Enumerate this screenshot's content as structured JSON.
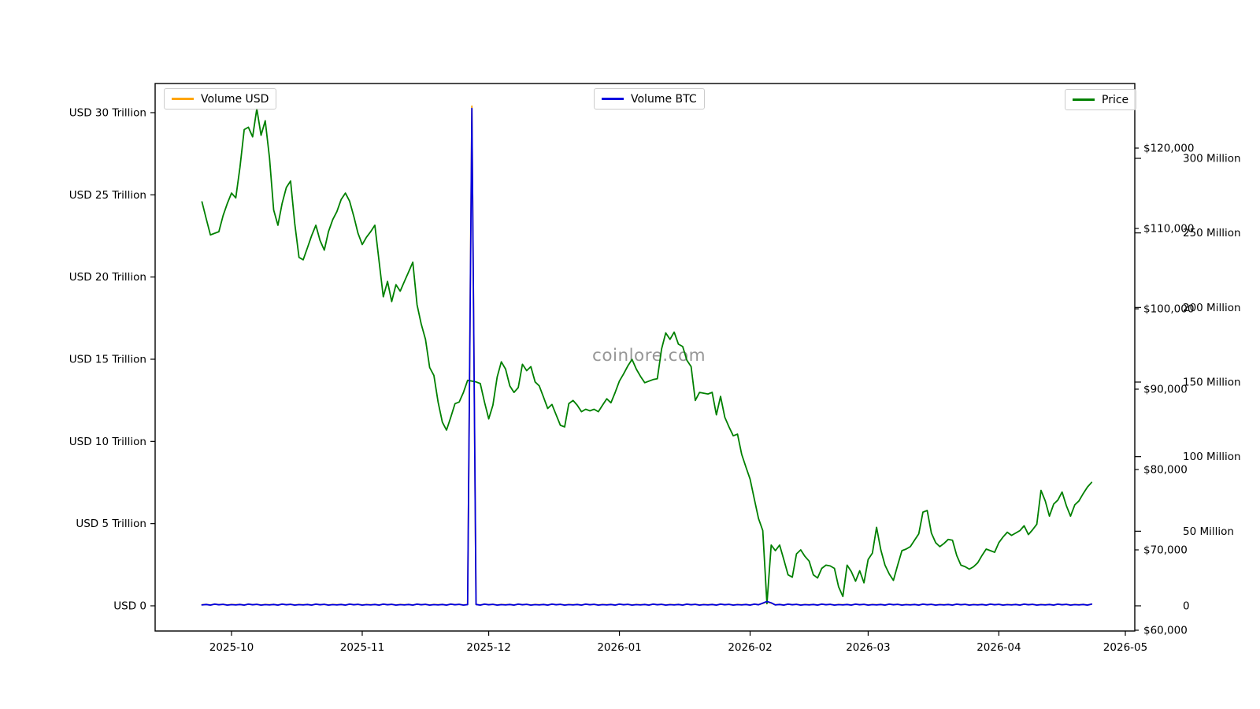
{
  "page": {
    "background": "#ffffff"
  },
  "watermark": {
    "text": "coinlore.com",
    "color": "#979797"
  },
  "legend": {
    "items": [
      {
        "label": "Volume USD",
        "color": "#FFA500"
      },
      {
        "label": "Volume BTC",
        "color": "#0000E0"
      },
      {
        "label": "Price",
        "color": "#008000"
      }
    ]
  },
  "chart_data": {
    "type": "line",
    "title": "",
    "grid": false,
    "x_axis": {
      "ticks": [
        {
          "label": "2025-10",
          "date": "2025-10-01"
        },
        {
          "label": "2025-11",
          "date": "2025-11-01"
        },
        {
          "label": "2025-12",
          "date": "2025-12-01"
        },
        {
          "label": "2026-01",
          "date": "2026-01-01"
        },
        {
          "label": "2026-02",
          "date": "2026-02-01"
        },
        {
          "label": "2026-03",
          "date": "2026-03-01"
        },
        {
          "label": "2026-04",
          "date": "2026-04-01"
        },
        {
          "label": "2026-05",
          "date": "2026-05-01"
        }
      ]
    },
    "left_axis": {
      "unit": "USD Trillion",
      "ticks": [
        {
          "label": "USD 30 Trillion",
          "value": 30
        },
        {
          "label": "USD 25 Trillion",
          "value": 25
        },
        {
          "label": "USD 20 Trillion",
          "value": 20
        },
        {
          "label": "USD 15 Trillion",
          "value": 15
        },
        {
          "label": "USD 10 Trillion",
          "value": 10
        },
        {
          "label": "USD 5 Trillion",
          "value": 5
        },
        {
          "label": "USD 0",
          "value": 0
        }
      ]
    },
    "right_price_axis": {
      "unit": "USD",
      "ticks": [
        {
          "label": "$120,000",
          "value": 120000
        },
        {
          "label": "$110,000",
          "value": 110000
        },
        {
          "label": "$100,000",
          "value": 100000
        },
        {
          "label": "$90,000",
          "value": 90000
        },
        {
          "label": "$80,000",
          "value": 80000
        },
        {
          "label": "$70,000",
          "value": 70000
        },
        {
          "label": "$60,000",
          "value": 60000
        }
      ]
    },
    "right_volume_axis": {
      "unit": "Million BTC",
      "ticks": [
        {
          "label": "300 Million",
          "value": 300
        },
        {
          "label": "250 Million",
          "value": 250
        },
        {
          "label": "200 Million",
          "value": 200
        },
        {
          "label": "150 Million",
          "value": 150
        },
        {
          "label": "100 Million",
          "value": 100
        },
        {
          "label": "50 Million",
          "value": 50
        },
        {
          "label": "0",
          "value": 0
        }
      ]
    },
    "timeline": {
      "start_date": "2025-09-24",
      "interval_days": 1,
      "points": 212
    },
    "series": [
      {
        "name": "Volume USD",
        "axis": "left",
        "color": "#FFA500",
        "unit": "trillion USD",
        "baseline_pattern": [
          0.06,
          0.08,
          0.05,
          0.1,
          0.07,
          0.09,
          0.05,
          0.08
        ],
        "overrides": {
          "2025-11-27": 30.4,
          "2026-02-04": 0.15,
          "2026-02-05": 0.24,
          "2026-02-06": 0.16
        }
      },
      {
        "name": "Volume BTC",
        "axis": "right_volume",
        "color": "#0000E0",
        "unit": "million BTC",
        "baseline_pattern": [
          0.6,
          0.9,
          0.5,
          1.1,
          0.7,
          1.0,
          0.5,
          0.8
        ],
        "overrides": {
          "2025-11-27": 333.5,
          "2026-02-04": 1.8,
          "2026-02-05": 2.9,
          "2026-02-06": 2.0
        }
      },
      {
        "name": "Price",
        "axis": "right_price",
        "color": "#008000",
        "unit": "USD",
        "start_date": "2025-09-24",
        "values": [
          113300,
          111200,
          109200,
          109400,
          109600,
          111600,
          113100,
          114400,
          113800,
          117600,
          122300,
          122600,
          121400,
          124900,
          121600,
          123400,
          118800,
          112300,
          110400,
          113100,
          115100,
          115900,
          110600,
          106400,
          106100,
          107600,
          109100,
          110400,
          108500,
          107300,
          109600,
          111100,
          112100,
          113600,
          114400,
          113400,
          111500,
          109400,
          108000,
          108900,
          109600,
          110400,
          105900,
          101500,
          103400,
          100900,
          103000,
          102200,
          103400,
          104600,
          105800,
          100500,
          98100,
          96200,
          92700,
          91700,
          88400,
          85900,
          84900,
          86500,
          88200,
          88400,
          89600,
          91100,
          91000,
          90900,
          90700,
          88400,
          86300,
          88000,
          91500,
          93400,
          92500,
          90400,
          89600,
          90200,
          93100,
          92300,
          92800,
          90900,
          90400,
          89000,
          87600,
          88100,
          86800,
          85500,
          85300,
          88200,
          88600,
          88000,
          87200,
          87500,
          87300,
          87500,
          87200,
          88000,
          88800,
          88300,
          89600,
          91000,
          91900,
          92900,
          93700,
          92500,
          91600,
          90800,
          91000,
          91200,
          91300,
          95000,
          97000,
          96200,
          97100,
          95600,
          95300,
          93600,
          92800,
          88600,
          89600,
          89500,
          89400,
          89600,
          86800,
          89100,
          86500,
          85300,
          84200,
          84400,
          81900,
          80300,
          78800,
          76300,
          73900,
          72400,
          63300,
          70600,
          69900,
          70600,
          68800,
          66900,
          66600,
          69500,
          70000,
          69200,
          68600,
          66900,
          66500,
          67700,
          68100,
          68000,
          67700,
          65400,
          64200,
          68100,
          67300,
          66100,
          67400,
          65900,
          68800,
          69600,
          72800,
          70000,
          68100,
          67000,
          66200,
          68100,
          69900,
          70100,
          70400,
          71200,
          72000,
          74700,
          74900,
          72100,
          70900,
          70400,
          70800,
          71300,
          71200,
          69300,
          68100,
          67900,
          67600,
          67900,
          68400,
          69300,
          70100,
          69900,
          69700,
          70900,
          71600,
          72200,
          71800,
          72100,
          72400,
          73000,
          71900,
          72500,
          73200,
          77400,
          76100,
          74200,
          75700,
          76200,
          77200,
          75500,
          74200,
          75600,
          76100,
          77000,
          77800,
          78400
        ]
      }
    ]
  }
}
